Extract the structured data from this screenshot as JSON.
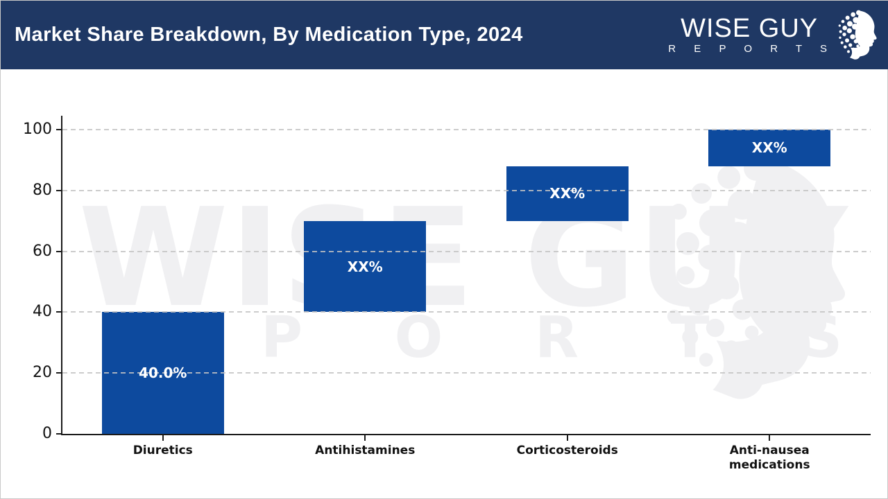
{
  "header": {
    "title": "Market Share Breakdown, By Medication Type, 2024",
    "logo": {
      "name_line": "WISE GUY",
      "reports_line": "R E P O R T S"
    },
    "bg_color": "#1f3864"
  },
  "watermark": {
    "line1": "WISE GUY",
    "line2": "P O R T S"
  },
  "chart_data": {
    "type": "bar",
    "variant": "waterfall",
    "title": "Market Share Breakdown, By Medication Type, 2024",
    "categories": [
      "Diuretics",
      "Antihistamines",
      "Corticosteroids",
      "Anti-nausea medications"
    ],
    "bars": [
      {
        "category": "Diuretics",
        "start": 0,
        "end": 40,
        "label": "40.0%"
      },
      {
        "category": "Antihistamines",
        "start": 40,
        "end": 70,
        "label": "XX%"
      },
      {
        "category": "Corticosteroids",
        "start": 70,
        "end": 88,
        "label": "XX%"
      },
      {
        "category": "Anti-nausea medications",
        "start": 88,
        "end": 100,
        "label": "XX%"
      }
    ],
    "xlabel": "",
    "ylabel": "",
    "ylim": [
      0,
      100
    ],
    "yticks": [
      0,
      20,
      40,
      60,
      80,
      100
    ],
    "grid": "horizontal-dashed",
    "legend": "none",
    "colors": {
      "bar": "#0d4a9e",
      "bar_label": "#ffffff",
      "header_bg": "#1f3864",
      "axis": "#1a1a1a",
      "gridline": "#c3c3c3",
      "watermark": "#f0f0f2"
    }
  }
}
